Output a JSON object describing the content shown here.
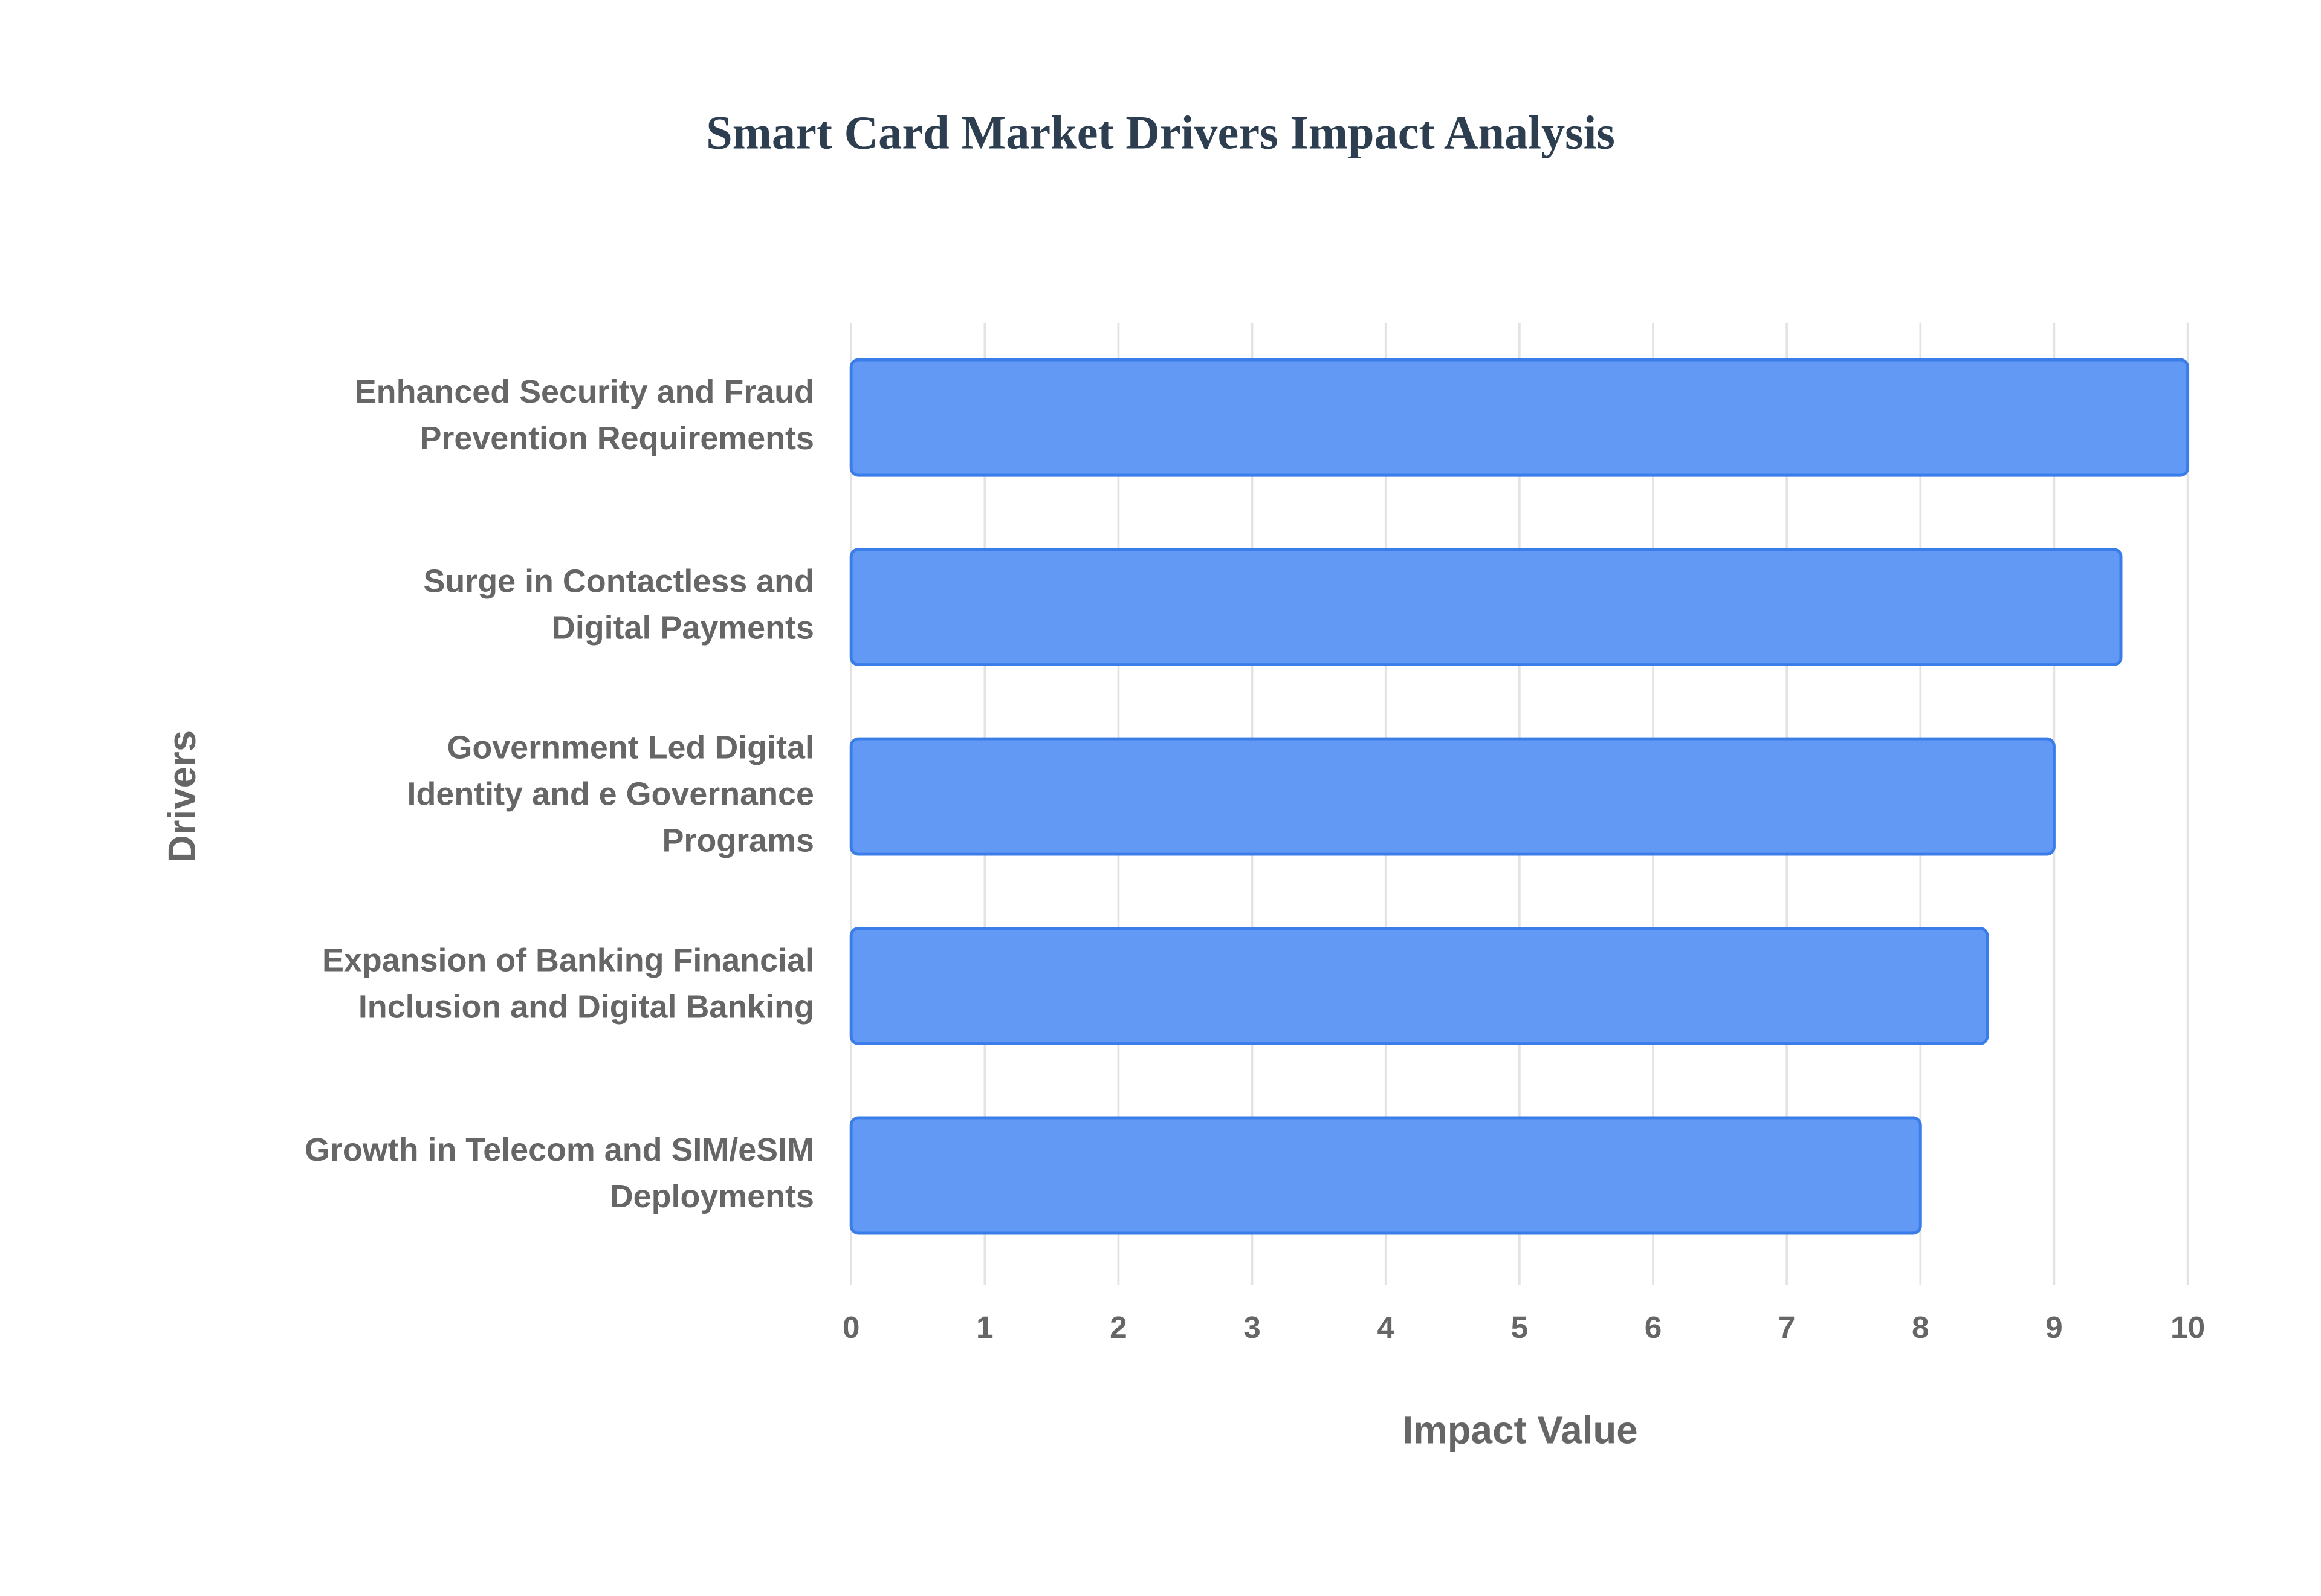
{
  "chart_data": {
    "type": "bar",
    "orientation": "horizontal",
    "title": "Smart Card Market Drivers Impact Analysis",
    "x_label": "Impact Value",
    "y_label": "Drivers",
    "categories": [
      "Enhanced Security and Fraud Prevention Requirements",
      "Surge in Contactless and Digital Payments",
      "Government Led Digital Identity and e Governance Programs",
      "Expansion of Banking Financial Inclusion and Digital Banking",
      "Growth in Telecom and SIM/eSIM Deployments"
    ],
    "values": [
      10,
      9.5,
      9,
      8.5,
      8
    ],
    "color": "#6199f5",
    "xlim": [
      0,
      10
    ],
    "xticks": [
      0,
      1,
      2,
      3,
      4,
      5,
      6,
      7,
      8,
      9,
      10
    ],
    "grid": true
  }
}
